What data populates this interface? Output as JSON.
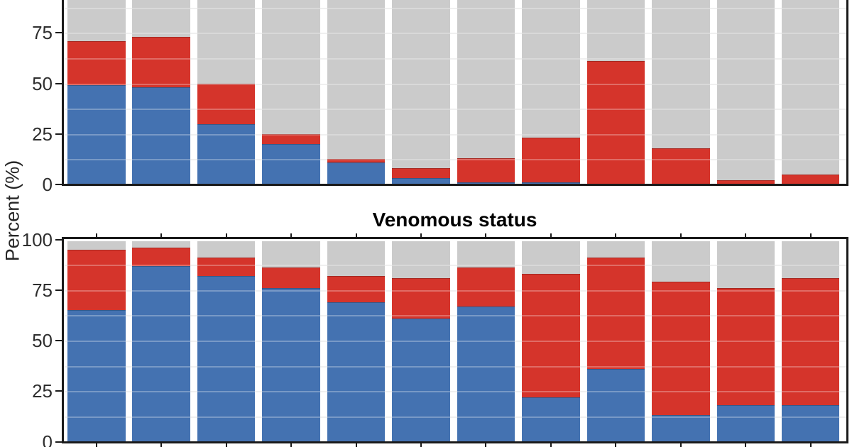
{
  "figure": {
    "ylabel": "Percent (%)",
    "colors": {
      "blue": "#4472b1",
      "red": "#d5342b",
      "grey": "#cbcbcb",
      "axis": "#1a1a1a",
      "tick_label": "#2e2e2e",
      "grid_under": "#eaeaea",
      "grid_over": "rgba(255,255,255,0.28)"
    }
  },
  "chart_data": [
    {
      "type": "bar",
      "stacked": true,
      "title": "",
      "title_visible": false,
      "note": "upper panel; its title and the 100% tick are cropped off the top edge of the image",
      "ylabel": "Percent (%)",
      "ylim": [
        0,
        100
      ],
      "yticks_visible": [
        75,
        50,
        25,
        0
      ],
      "n_bars": 12,
      "x_tick_labels_visible": false,
      "grid": "horizontal major and minor lines, every 12.5%",
      "legend": "none",
      "series": [
        {
          "name": "blue-bottom-segment",
          "color": "#4472b1",
          "values": [
            49,
            48,
            30,
            20,
            11,
            3,
            1,
            1,
            0,
            0,
            0,
            0
          ]
        },
        {
          "name": "red-middle-segment",
          "color": "#d5342b",
          "values": [
            22,
            25,
            20,
            5,
            1.5,
            5,
            12,
            22,
            61,
            18,
            2,
            5
          ]
        },
        {
          "name": "grey-remainder-segment",
          "color": "#cbcbcb",
          "values": [
            29,
            27,
            50,
            75,
            87.5,
            92,
            87,
            77,
            39,
            82,
            98,
            95
          ]
        }
      ]
    },
    {
      "type": "bar",
      "stacked": true,
      "title": "Venomous status",
      "title_visible": true,
      "note": "lower panel; x tick labels are cropped off the bottom edge of the image",
      "ylabel": "Percent (%)",
      "ylim": [
        0,
        100
      ],
      "yticks_visible": [
        100,
        75,
        50,
        25,
        0
      ],
      "n_bars": 12,
      "x_tick_labels_visible": false,
      "grid": "horizontal major and minor lines, every 12.5%",
      "legend": "none",
      "series": [
        {
          "name": "blue-bottom-segment",
          "color": "#4472b1",
          "values": [
            65,
            87,
            82,
            76,
            69,
            61,
            67,
            22,
            36,
            13,
            18,
            18
          ]
        },
        {
          "name": "red-middle-segment",
          "color": "#d5342b",
          "values": [
            30,
            9,
            9,
            10,
            13,
            20,
            19,
            61,
            55,
            66,
            58,
            63
          ]
        },
        {
          "name": "grey-remainder-segment",
          "color": "#cbcbcb",
          "values": [
            5,
            4,
            9,
            14,
            18,
            19,
            14,
            17,
            9,
            21,
            24,
            19
          ]
        }
      ]
    }
  ]
}
